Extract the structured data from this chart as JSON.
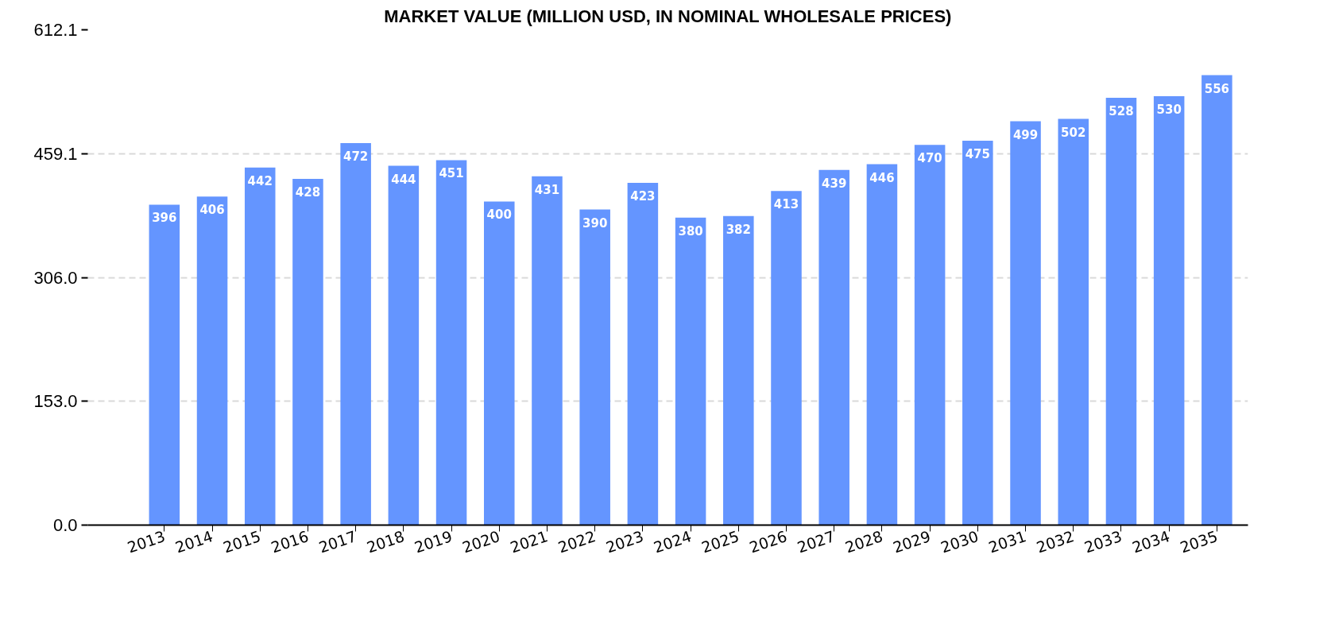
{
  "chart_data": {
    "type": "bar",
    "title": "MARKET VALUE (MILLION USD, IN NOMINAL WHOLESALE PRICES)",
    "categories": [
      "2013",
      "2014",
      "2015",
      "2016",
      "2017",
      "2018",
      "2019",
      "2020",
      "2021",
      "2022",
      "2023",
      "2024",
      "2025",
      "2026",
      "2027",
      "2028",
      "2029",
      "2030",
      "2031",
      "2032",
      "2033",
      "2034",
      "2035"
    ],
    "values": [
      396,
      406,
      442,
      428,
      472,
      444,
      451,
      400,
      431,
      390,
      423,
      380,
      382,
      413,
      439,
      446,
      470,
      475,
      499,
      502,
      528,
      530,
      556
    ],
    "color": "#6495ff",
    "ylim": [
      0,
      612.1
    ],
    "yticks": [
      {
        "value": 0,
        "label": "0.0"
      },
      {
        "value": 153.0,
        "label": "153.0"
      },
      {
        "value": 306.0,
        "label": "306.0"
      },
      459.1,
      612.1
    ],
    "grid": "y",
    "data_labels": true
  }
}
